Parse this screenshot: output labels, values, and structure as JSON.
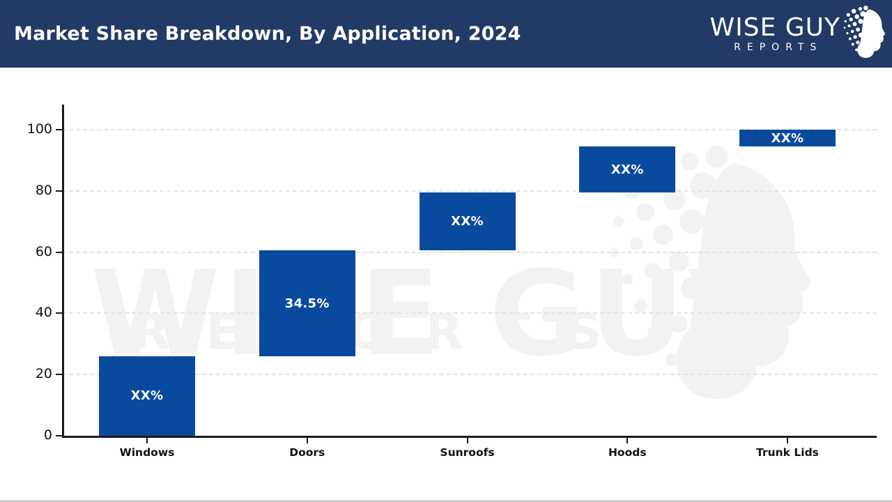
{
  "header": {
    "title": "Market Share Breakdown, By Application, 2024",
    "bg_color": "#213a66",
    "logo": {
      "line1": "WISE GUY",
      "line2": "REPORTS"
    }
  },
  "watermark": {
    "line1": "WISE GUY",
    "line2": "REPORTS"
  },
  "chart_data": {
    "type": "bar",
    "subtype": "floating-waterfall",
    "title": "Market Share Breakdown, By Application, 2024",
    "categories": [
      "Windows",
      "Doors",
      "Sunroofs",
      "Hoods",
      "Trunk Lids"
    ],
    "segments": [
      {
        "category": "Windows",
        "start": 0,
        "end": 26,
        "label": "XX%"
      },
      {
        "category": "Doors",
        "start": 26,
        "end": 60.5,
        "label": "34.5%"
      },
      {
        "category": "Sunroofs",
        "start": 60.5,
        "end": 79.5,
        "label": "XX%"
      },
      {
        "category": "Hoods",
        "start": 79.5,
        "end": 94.5,
        "label": "XX%"
      },
      {
        "category": "Trunk Lids",
        "start": 94.5,
        "end": 100,
        "label": "XX%"
      }
    ],
    "xlabel": "",
    "ylabel": "",
    "y_ticks": [
      0,
      20,
      40,
      60,
      80,
      100
    ],
    "ylim": [
      0,
      108
    ],
    "grid": "horizontal-dashed",
    "legend": "none",
    "bar_color": "#0a4a9e",
    "bar_label_color": "#ffffff",
    "axis_color": "#1a1a1a",
    "gridline_color": "#e2e2e2"
  }
}
